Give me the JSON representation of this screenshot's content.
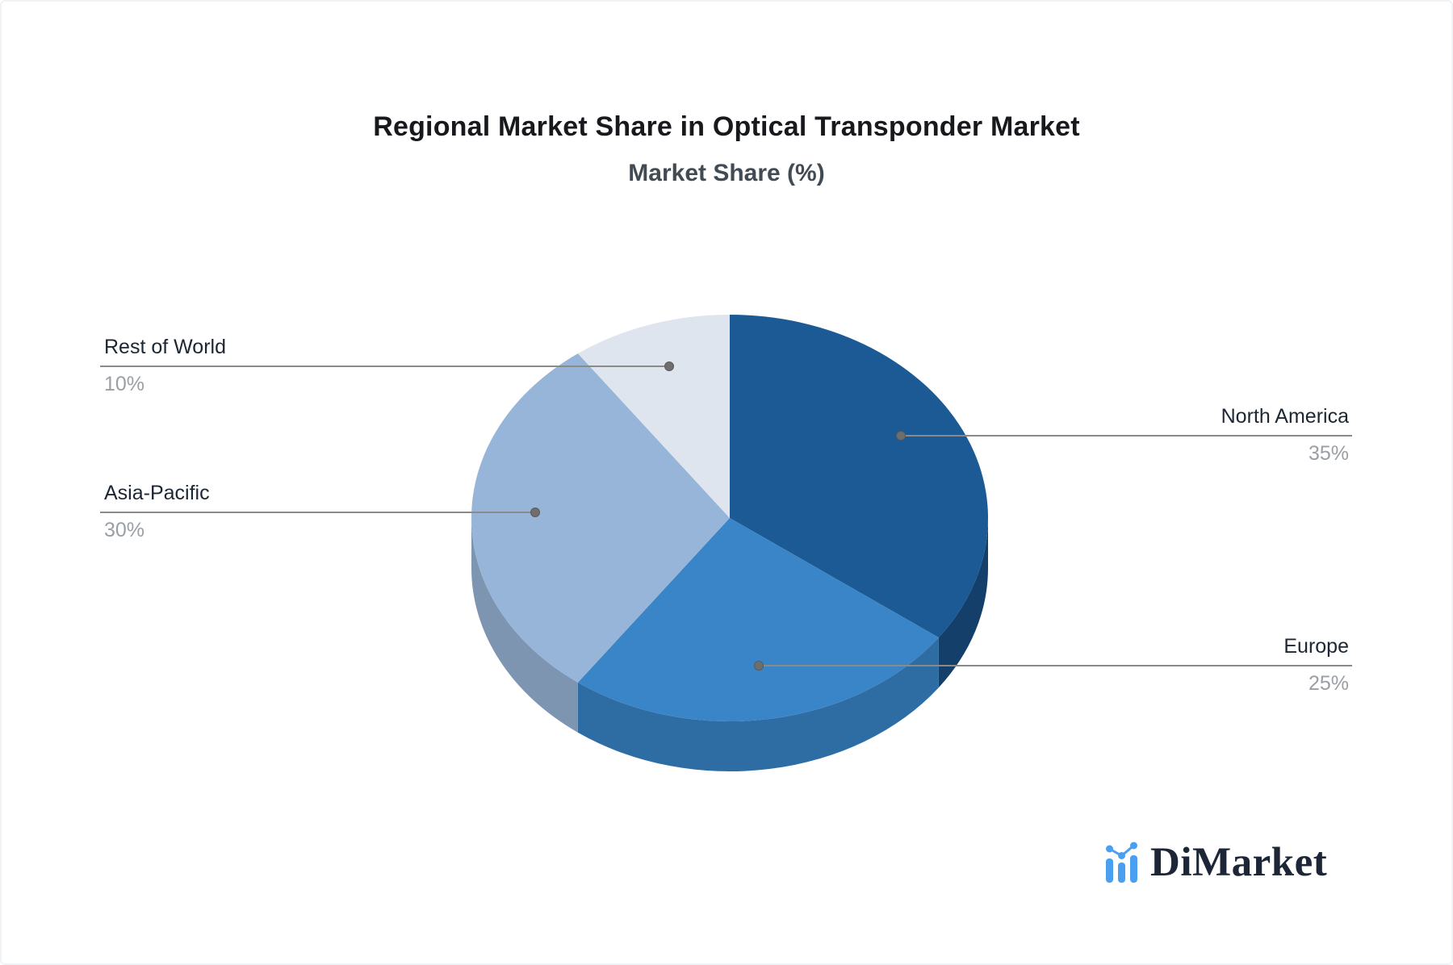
{
  "title": "Regional Market Share in Optical Transponder Market",
  "subtitle": "Market Share (%)",
  "brand": {
    "name": "DiMarket"
  },
  "chart_data": {
    "type": "pie",
    "title": "Regional Market Share in Optical Transponder Market",
    "subtitle": "Market Share (%)",
    "unit": "%",
    "effect": "3d-depth",
    "direction": "clockwise",
    "start_angle_deg": 0,
    "legend": "callout-labels-with-leader-lines",
    "slices": [
      {
        "label": "North America",
        "value": 35,
        "percent_label": "35%",
        "color": "#1b5a94",
        "side_color": "#133f6a",
        "label_side": "right"
      },
      {
        "label": "Europe",
        "value": 25,
        "percent_label": "25%",
        "color": "#3a85c8",
        "side_color": "#2d6da4",
        "label_side": "right"
      },
      {
        "label": "Asia-Pacific",
        "value": 30,
        "percent_label": "30%",
        "color": "#96b5d8",
        "side_color": "#7e95b1",
        "label_side": "left"
      },
      {
        "label": "Rest of World",
        "value": 10,
        "percent_label": "10%",
        "color": "#dee5ee",
        "side_color": "#c2cddd",
        "label_side": "left"
      }
    ],
    "style": {
      "leader_line_color": "#8a8a8a",
      "leader_dot_color": "#6e6e6e",
      "title_color": "#17191d",
      "subtitle_color": "#424b54",
      "label_color": "#1d2633",
      "percent_color": "#999fa4",
      "background": "#ffffff"
    }
  }
}
